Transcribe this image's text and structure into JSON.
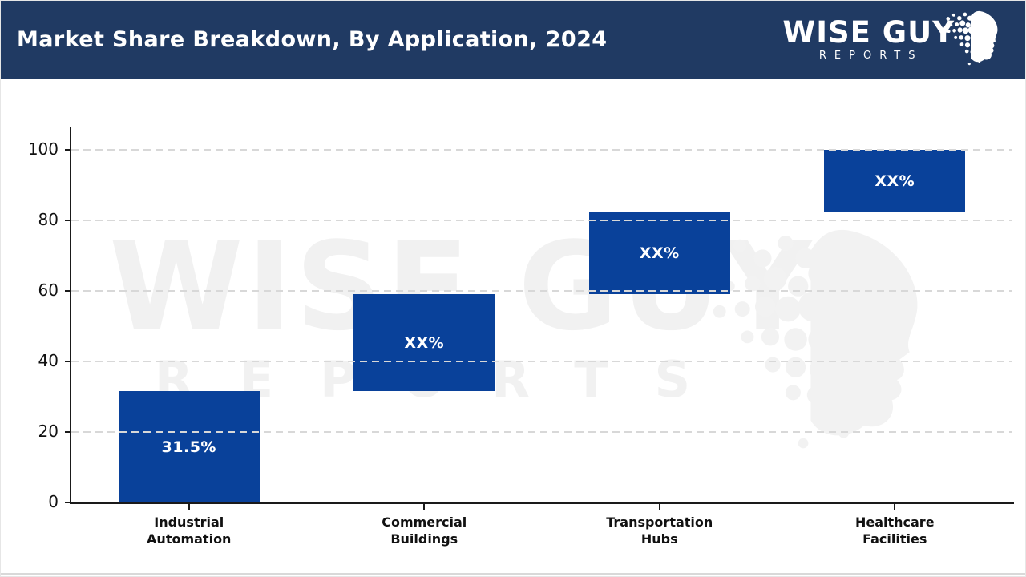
{
  "header": {
    "title": "Market Share Breakdown, By Application, 2024",
    "logo": {
      "line1": "WISE GUY",
      "line2": "REPORTS"
    }
  },
  "watermark": {
    "line1": "WISE GUY",
    "line2": "REPORTS"
  },
  "chart_data": {
    "type": "bar",
    "subtype": "waterfall",
    "title": "Market Share Breakdown, By Application, 2024",
    "xlabel": "",
    "ylabel": "",
    "categories": [
      [
        "Industrial",
        "Automation"
      ],
      [
        "Commercial",
        "Buildings"
      ],
      [
        "Transportation",
        "Hubs"
      ],
      [
        "Healthcare",
        "Facilities"
      ]
    ],
    "bars": [
      {
        "start": 0,
        "end": 31.5,
        "value": 31.5,
        "label": "31.5%"
      },
      {
        "start": 31.5,
        "end": 59,
        "value": 27.5,
        "label": "XX%"
      },
      {
        "start": 59,
        "end": 82.5,
        "value": 23.5,
        "label": "XX%"
      },
      {
        "start": 82.5,
        "end": 100,
        "value": 17.5,
        "label": "XX%"
      }
    ],
    "yticks": [
      0,
      20,
      40,
      60,
      80,
      100
    ],
    "ylim": [
      0,
      106
    ],
    "grid": "dashed-horizontal",
    "legend": "none",
    "bar_color": "#09419A",
    "label_color": "#ffffff",
    "axis_color": "#1a1a1a",
    "gridline_color": "#d8d8d8",
    "header_bg": "#203A63",
    "watermark_color": "#f1f1f1"
  }
}
